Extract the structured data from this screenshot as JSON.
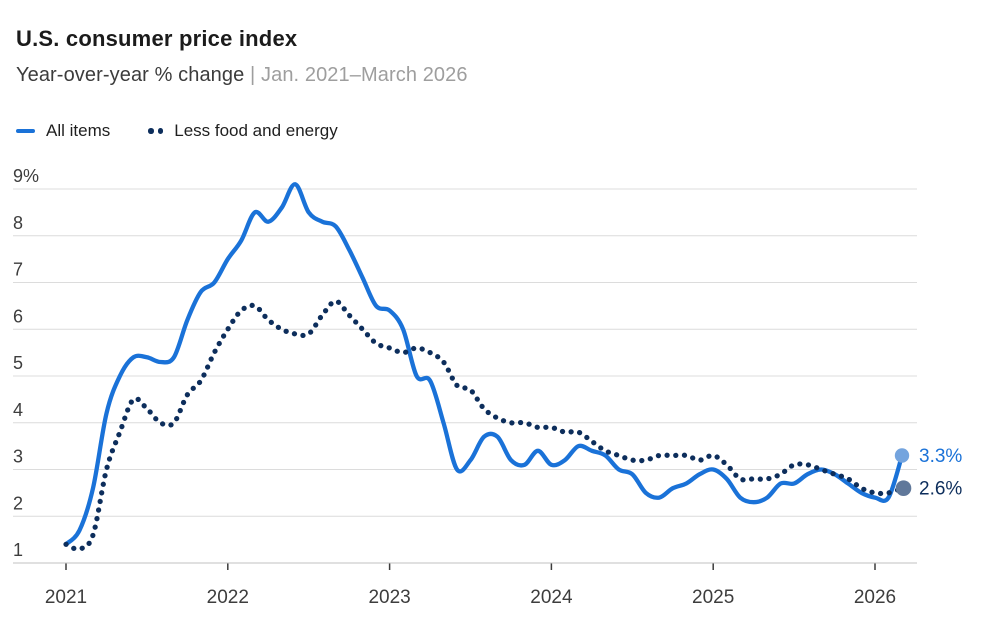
{
  "header": {
    "title": "U.S. consumer price index",
    "subtitle_main": "Year-over-year % change",
    "subtitle_separator": "|",
    "subtitle_range": "Jan. 2021–March 2026"
  },
  "legend": {
    "items": [
      {
        "label": "All items",
        "color": "#1a72d8",
        "swatch": "line"
      },
      {
        "label": "Less food and energy",
        "color": "#0d2e5c",
        "swatch": "dots"
      }
    ]
  },
  "colors": {
    "gridline": "#dcdcdc",
    "axis_line": "#c2c2c2",
    "tick": "#3c3c3c",
    "axis_label": "#3d3d3d"
  },
  "chart_data": {
    "type": "line",
    "title": "U.S. consumer price index",
    "subtitle": "Year-over-year % change | Jan. 2021–March 2026",
    "x_unit": "month",
    "x_range": [
      "2021-01",
      "2026-03"
    ],
    "x_tick_labels": [
      "2021",
      "2022",
      "2023",
      "2024",
      "2025",
      "2026"
    ],
    "y_tick_labels": [
      "9%",
      "8",
      "7",
      "6",
      "5",
      "4",
      "3",
      "2",
      "1"
    ],
    "ylim": [
      1,
      9
    ],
    "grid": "horizontal",
    "legend_position": "top-left",
    "series": [
      {
        "name": "All items",
        "color": "#1a72d8",
        "line_style": "solid",
        "end_label": "3.3%",
        "end_dot_color": "#74a4de",
        "values": [
          1.4,
          1.7,
          2.6,
          4.2,
          5.0,
          5.4,
          5.4,
          5.3,
          5.4,
          6.2,
          6.8,
          7.0,
          7.5,
          7.9,
          8.5,
          8.3,
          8.6,
          9.1,
          8.5,
          8.3,
          8.2,
          7.7,
          7.1,
          6.5,
          6.4,
          6.0,
          5.0,
          4.9,
          4.0,
          3.0,
          3.2,
          3.7,
          3.7,
          3.2,
          3.1,
          3.4,
          3.1,
          3.2,
          3.5,
          3.4,
          3.3,
          3.0,
          2.9,
          2.5,
          2.4,
          2.6,
          2.7,
          2.9,
          3.0,
          2.8,
          2.4,
          2.3,
          2.4,
          2.7,
          2.7,
          2.9,
          3.0,
          2.9,
          2.7,
          2.5,
          2.4,
          2.4,
          3.3
        ]
      },
      {
        "name": "Less food and energy",
        "color": "#0d2e5c",
        "line_style": "dotted",
        "end_label": "2.6%",
        "end_dot_color": "#60789a",
        "values": [
          1.4,
          1.3,
          1.6,
          3.0,
          3.8,
          4.5,
          4.3,
          4.0,
          4.0,
          4.6,
          4.9,
          5.5,
          6.0,
          6.4,
          6.5,
          6.2,
          6.0,
          5.9,
          5.9,
          6.3,
          6.6,
          6.3,
          6.0,
          5.7,
          5.6,
          5.5,
          5.6,
          5.5,
          5.3,
          4.8,
          4.7,
          4.3,
          4.1,
          4.0,
          4.0,
          3.9,
          3.9,
          3.8,
          3.8,
          3.6,
          3.4,
          3.3,
          3.2,
          3.2,
          3.3,
          3.3,
          3.3,
          3.2,
          3.3,
          3.1,
          2.8,
          2.8,
          2.8,
          2.9,
          3.1,
          3.1,
          3.0,
          2.9,
          2.8,
          2.6,
          2.5,
          2.5,
          2.6
        ]
      }
    ]
  }
}
